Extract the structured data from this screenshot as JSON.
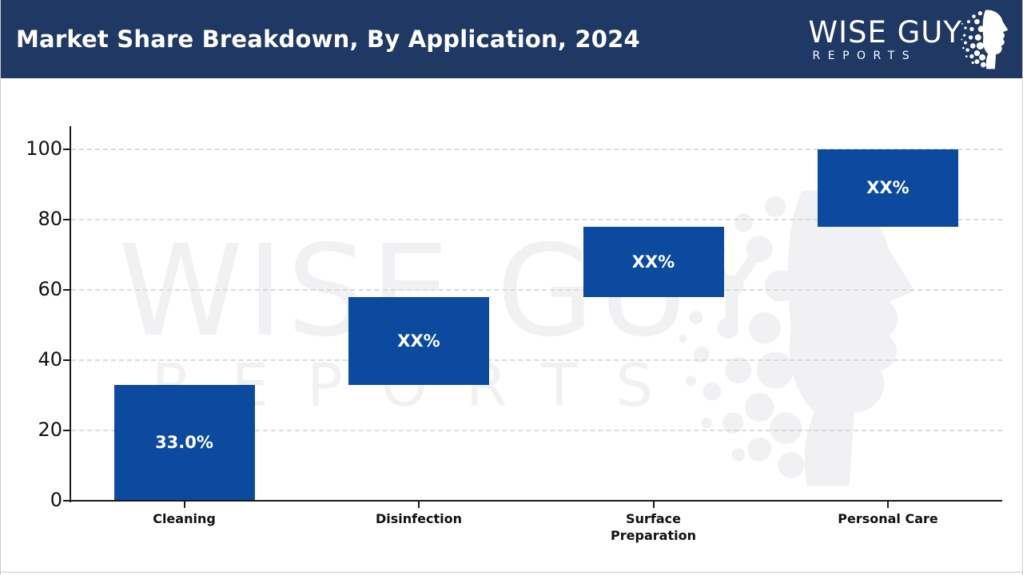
{
  "header": {
    "title": "Market Share Breakdown, By Application, 2024",
    "bg_color": "#1f3864",
    "logo": {
      "line1": "WISE GUY",
      "line2": "REPORTS"
    }
  },
  "watermark": {
    "line1": "WISE GUY",
    "line2": "REPORTS"
  },
  "chart_data": {
    "type": "bar",
    "subtype": "waterfall-floating-segments",
    "title": "Market Share Breakdown, By Application, 2024",
    "categories": [
      "Cleaning",
      "Disinfection",
      "Surface Preparation",
      "Personal Care"
    ],
    "segments": [
      {
        "category": "Cleaning",
        "tick_lines": [
          "Cleaning"
        ],
        "start": 0,
        "end": 33,
        "label": "33.0%"
      },
      {
        "category": "Disinfection",
        "tick_lines": [
          "Disinfection"
        ],
        "start": 33,
        "end": 58,
        "label": "XX%"
      },
      {
        "category": "Surface Preparation",
        "tick_lines": [
          "Surface",
          "Preparation"
        ],
        "start": 58,
        "end": 78,
        "label": "XX%"
      },
      {
        "category": "Personal Care",
        "tick_lines": [
          "Personal Care"
        ],
        "start": 78,
        "end": 100,
        "label": "XX%"
      }
    ],
    "y_ticks": [
      0,
      20,
      40,
      60,
      80,
      100
    ],
    "ylim": [
      0,
      106
    ],
    "xlabel": "",
    "ylabel": "",
    "bar_color": "#0b4a9e",
    "grid": "horizontal-dashed",
    "grid_color": "#dbdbdb",
    "axis_color": "#1a1a1a",
    "legend": null
  }
}
